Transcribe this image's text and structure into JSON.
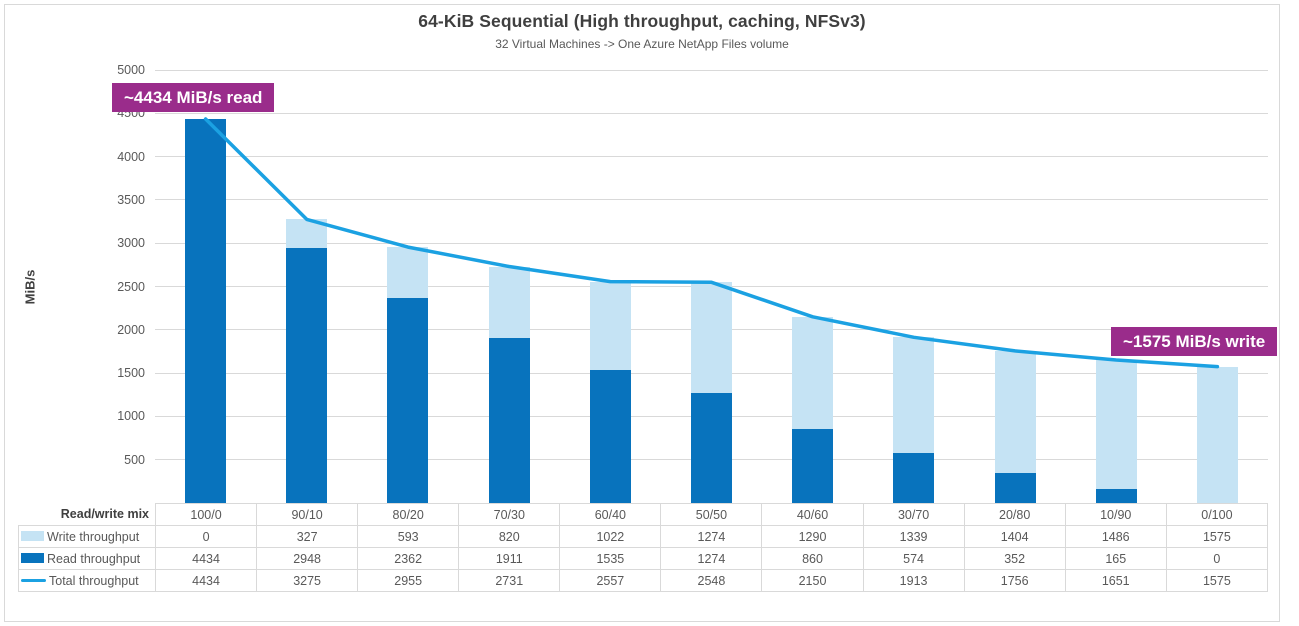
{
  "title": "64-KiB Sequential (High throughput, caching, NFSv3)",
  "subtitle": "32 Virtual Machines -> One Azure NetApp Files volume",
  "y_axis": {
    "label": "MiB/s",
    "min": 0,
    "max": 5000,
    "step": 500
  },
  "annotations": {
    "read_peak": "~4434 MiB/s read",
    "write_peak": "~1575 MiB/s write"
  },
  "table": {
    "corner_label": "Read/write mix"
  },
  "colors": {
    "read_bar": "#0873bd",
    "write_bar": "#c5e3f4",
    "total_line": "#1ba1e2",
    "annotation_bg": "#9a2c8b",
    "grid": "#d9d9d9",
    "text_dark": "#3f3f3f",
    "text_mid": "#595959"
  },
  "chart_data": {
    "type": "bar",
    "subtype": "stacked-column-with-line-overlay-and-data-table",
    "title": "64-KiB Sequential (High throughput, caching, NFSv3)",
    "subtitle": "32 Virtual Machines -> One Azure NetApp Files volume",
    "xlabel": "Read/write mix",
    "ylabel": "MiB/s",
    "ylim": [
      0,
      5000
    ],
    "ytick_step": 500,
    "grid": true,
    "legend_position": "data-table-left",
    "categories": [
      "100/0",
      "90/10",
      "80/20",
      "70/30",
      "60/40",
      "50/50",
      "40/60",
      "30/70",
      "20/80",
      "10/90",
      "0/100"
    ],
    "series": [
      {
        "name": "Write throughput",
        "type": "bar",
        "stack": "top",
        "color": "#c5e3f4",
        "values": [
          0,
          327,
          593,
          820,
          1022,
          1274,
          1290,
          1339,
          1404,
          1486,
          1575
        ]
      },
      {
        "name": "Read throughput",
        "type": "bar",
        "stack": "bottom",
        "color": "#0873bd",
        "values": [
          4434,
          2948,
          2362,
          1911,
          1535,
          1274,
          860,
          574,
          352,
          165,
          0
        ]
      },
      {
        "name": "Total throughput",
        "type": "line",
        "color": "#1ba1e2",
        "values": [
          4434,
          3275,
          2955,
          2731,
          2557,
          2548,
          2150,
          1913,
          1756,
          1651,
          1575
        ]
      }
    ]
  }
}
